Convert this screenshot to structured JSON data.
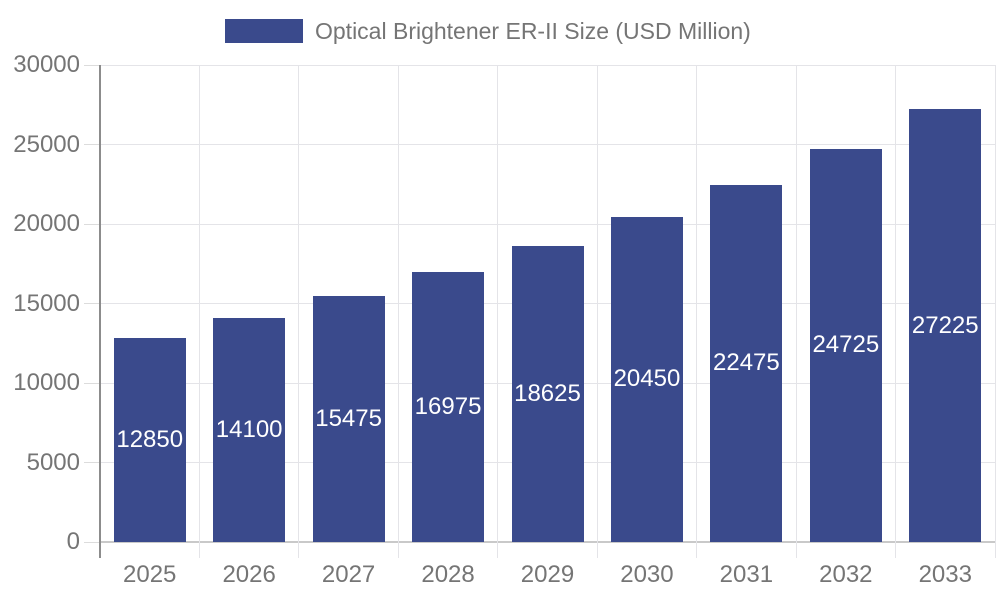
{
  "chart_data": {
    "type": "bar",
    "title": "",
    "legend": "Optical Brightener ER-II Size (USD Million)",
    "legend_position": "top-center",
    "categories": [
      "2025",
      "2026",
      "2027",
      "2028",
      "2029",
      "2030",
      "2031",
      "2032",
      "2033"
    ],
    "values": [
      12850,
      14100,
      15475,
      16975,
      18625,
      20450,
      22475,
      24725,
      27225
    ],
    "xlabel": "",
    "ylabel": "",
    "ylim": [
      0,
      30000
    ],
    "yticks": [
      0,
      5000,
      10000,
      15000,
      20000,
      25000,
      30000
    ],
    "grid": true,
    "value_labels_shown": true,
    "colors": {
      "bar": "#3A4A8C",
      "grid": "#E4E4E8",
      "axis_line": "#8C8C8C",
      "zero_line": "#C9C9C9",
      "tick": "#DCDCDC",
      "axis_text": "#757575",
      "legend_text": "#757575",
      "value_label_text": "#FFFFFF",
      "background": "#FFFFFF"
    }
  }
}
